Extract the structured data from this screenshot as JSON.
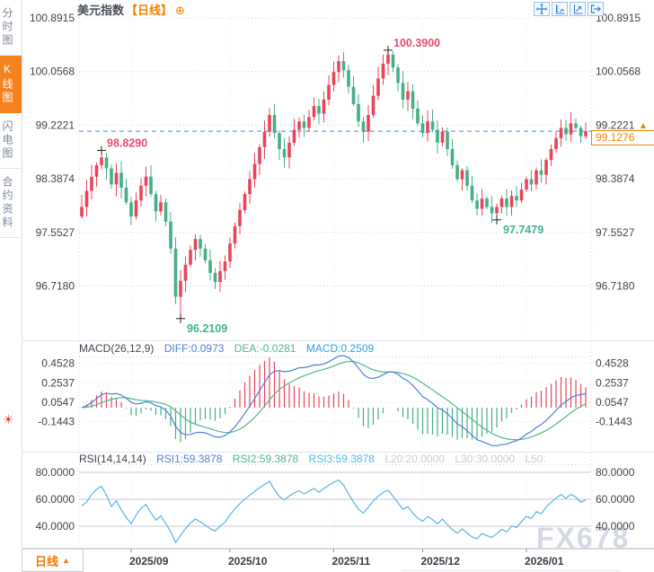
{
  "window": {
    "title_main": "美元指数",
    "title_mode": "【日线】"
  },
  "icons": {
    "triangle_up": "▲",
    "plus_circle": "⊕",
    "alert": "☀"
  },
  "sidebar": {
    "tabs": [
      {
        "label": "分时图",
        "active": false
      },
      {
        "label": "K线图",
        "active": true
      },
      {
        "label": "闪电图",
        "active": false
      },
      {
        "label": "合约资料",
        "active": false
      }
    ]
  },
  "toolbar": {
    "icon_names": [
      "crosshair",
      "axis-scale",
      "axis-indicator",
      "exit-fullscreen"
    ]
  },
  "bottom": {
    "period_tab": "日线"
  },
  "watermark": "FX678",
  "chart_data": [
    {
      "type": "candlestick",
      "title": "美元指数 日线",
      "y_ticks": [
        "100.8915",
        "100.0568",
        "99.2221",
        "98.3874",
        "97.5527",
        "96.7180"
      ],
      "x_labels": [
        "2025/09",
        "2025/10",
        "2025/11",
        "2025/12",
        "2026/01"
      ],
      "x_label_indices": [
        10,
        30,
        51,
        69,
        90
      ],
      "first_open": 97.8,
      "closes": [
        97.95,
        98.2,
        98.42,
        98.6,
        98.72,
        98.55,
        98.3,
        98.48,
        98.25,
        98.02,
        97.8,
        98.05,
        98.28,
        98.42,
        98.15,
        97.88,
        98.02,
        97.72,
        97.3,
        96.55,
        96.8,
        97.05,
        97.28,
        97.45,
        97.3,
        97.12,
        96.92,
        96.78,
        96.95,
        97.1,
        97.38,
        97.65,
        97.9,
        98.15,
        98.38,
        98.62,
        98.88,
        99.12,
        99.38,
        99.1,
        98.85,
        98.72,
        98.95,
        99.15,
        99.28,
        99.18,
        99.35,
        99.52,
        99.4,
        99.62,
        99.85,
        100.05,
        100.22,
        100.08,
        99.82,
        99.55,
        99.28,
        99.12,
        99.38,
        99.68,
        99.95,
        100.18,
        100.32,
        100.12,
        99.88,
        99.62,
        99.75,
        99.48,
        99.25,
        99.1,
        99.28,
        99.15,
        98.95,
        99.12,
        98.85,
        98.6,
        98.38,
        98.52,
        98.28,
        98.05,
        97.92,
        98.08,
        97.95,
        97.85,
        97.95,
        98.08,
        97.95,
        98.12,
        98.05,
        98.22,
        98.38,
        98.3,
        98.52,
        98.45,
        98.68,
        98.85,
        99.02,
        99.18,
        99.08,
        99.25,
        99.18,
        99.05,
        99.1276
      ],
      "annotations": [
        {
          "index": 4,
          "price": 98.829,
          "label": "98.8290",
          "kind": "high"
        },
        {
          "index": 20,
          "price": 96.2109,
          "label": "96.2109",
          "kind": "low"
        },
        {
          "index": 62,
          "price": 100.39,
          "label": "100.3900",
          "kind": "high"
        },
        {
          "index": 84,
          "price": 97.7479,
          "label": "97.7479",
          "kind": "low"
        }
      ],
      "last_price": {
        "value": 99.1276,
        "label": "99.1276"
      },
      "colors": {
        "up": "#e8455c",
        "down": "#45af85",
        "dashed_line": "#3e8ede",
        "high_label": "#ed4a6e",
        "low_label": "#3cb494",
        "price_box": "#f08200"
      }
    },
    {
      "type": "macd",
      "header": {
        "name": "MACD(26,12,9)",
        "diff": "DIFF:0.0973",
        "dea": "DEA:-0.0281",
        "macd": "MACD:0.2509"
      },
      "params": [
        26,
        12,
        9
      ],
      "y_ticks": [
        "0.4528",
        "0.2537",
        "0.0547",
        "-0.1443"
      ],
      "colors": {
        "diff": "#4f81d8",
        "dea": "#50b88a",
        "bar_up": "#e8455c",
        "bar_down": "#45af85"
      }
    },
    {
      "type": "rsi",
      "header": {
        "name": "RSI(14,14,14)",
        "rsi1": "RSI1:59.3878",
        "rsi2": "RSI2:59.3878",
        "rsi3": "RSI3:59.3878",
        "l20": "L20:20.0000",
        "l30": "L30:30.0000",
        "l50": "L50:"
      },
      "params": [
        14,
        14,
        14
      ],
      "y_ticks": [
        "80.0000",
        "60.0000",
        "40.0000"
      ],
      "colors": {
        "line": "#5ab4e5"
      }
    }
  ]
}
